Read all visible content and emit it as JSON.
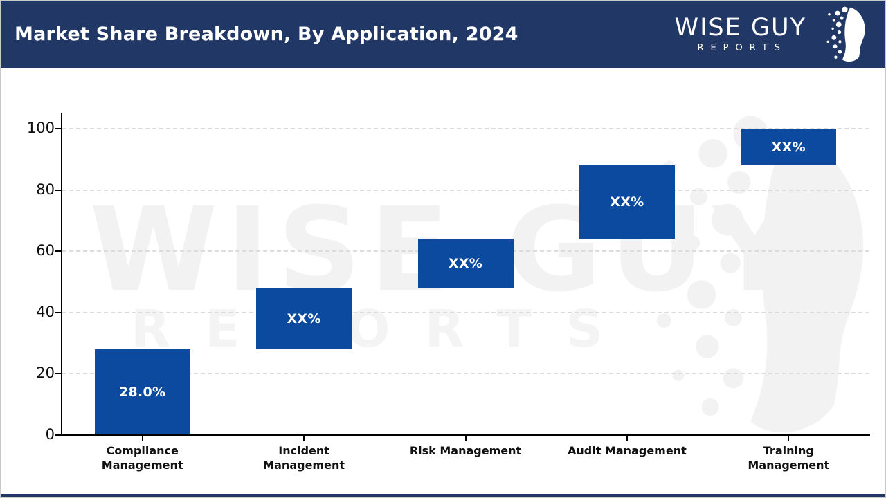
{
  "header": {
    "title": "Market Share Breakdown, By Application, 2024",
    "logo": {
      "line1": "WISE GUY",
      "line2": "REPORTS"
    }
  },
  "watermark": {
    "line1": "WISE GUY",
    "line2": "REPORTS"
  },
  "footer": {
    "visible": true
  },
  "colors": {
    "header_bg": "#213765",
    "bar": "#0b4a9e",
    "grid": "#dcdcdc",
    "axis": "#000000",
    "bar_label_text": "#ffffff",
    "watermark_text": "#f2f2f2"
  },
  "chart_data": {
    "type": "bar",
    "variant": "floating-waterfall",
    "title": "Market Share Breakdown, By Application, 2024",
    "xlabel": "",
    "ylabel": "",
    "categories": [
      "Compliance Management",
      "Incident Management",
      "Risk Management",
      "Audit Management",
      "Training Management"
    ],
    "category_lines": [
      [
        "Compliance",
        "Management"
      ],
      [
        "Incident",
        "Management"
      ],
      [
        "Risk Management"
      ],
      [
        "Audit Management"
      ],
      [
        "Training",
        "Management"
      ]
    ],
    "segments": [
      {
        "category": "Compliance Management",
        "label": "28.0%",
        "start": 0,
        "end": 28
      },
      {
        "category": "Incident Management",
        "label": "XX%",
        "start": 28,
        "end": 48
      },
      {
        "category": "Risk Management",
        "label": "XX%",
        "start": 48,
        "end": 64
      },
      {
        "category": "Audit Management",
        "label": "XX%",
        "start": 64,
        "end": 88
      },
      {
        "category": "Training Management",
        "label": "XX%",
        "start": 88,
        "end": 100
      }
    ],
    "yticks": [
      0,
      20,
      40,
      60,
      80,
      100
    ],
    "ylim": [
      0,
      105
    ],
    "grid": "dashed-horizontal",
    "legend": "none",
    "bar_color": "#0b4a9e"
  }
}
